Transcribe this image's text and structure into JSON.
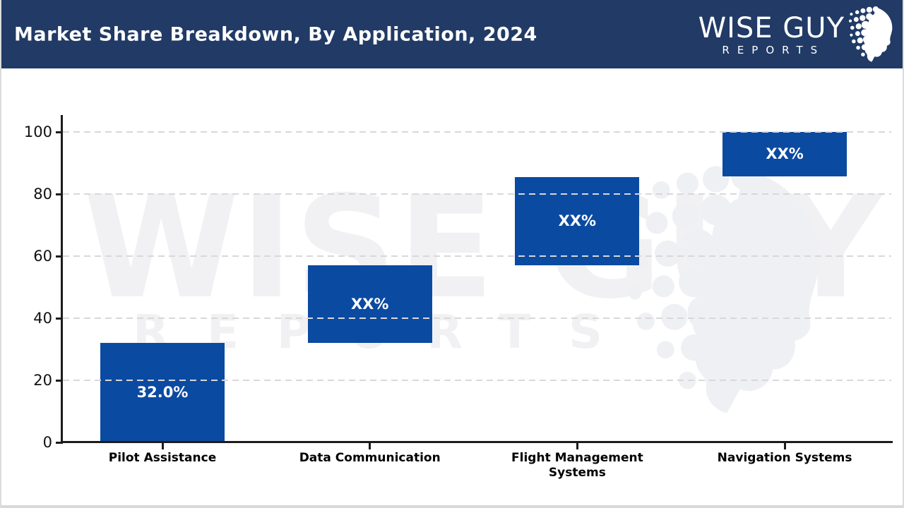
{
  "header": {
    "title": "Market Share Breakdown, By Application, 2024",
    "logo": {
      "wordmark": "WISE GUY",
      "tagline": "REPORTS"
    }
  },
  "watermark": {
    "wordmark": "WISE GUY",
    "tagline": "REPORTS"
  },
  "colors": {
    "header_bg": "#213a66",
    "bar": "#0b4aa1",
    "bar_label": "#ffffff",
    "grid": "#d8d8d8",
    "axis": "#1c1c1c",
    "watermark": "#f1f1f4"
  },
  "chart_data": {
    "type": "bar",
    "variant": "floating-segments-waterfall",
    "title": "Market Share Breakdown, By Application, 2024",
    "categories": [
      "Pilot Assistance",
      "Data Communication",
      "Flight Management Systems",
      "Navigation Systems"
    ],
    "series": [
      {
        "name": "Market share",
        "segments": [
          {
            "from": 0,
            "to": 32,
            "label": "32.0%"
          },
          {
            "from": 32,
            "to": 57,
            "label": "XX%"
          },
          {
            "from": 57,
            "to": 85.5,
            "label": "XX%"
          },
          {
            "from": 85.7,
            "to": 100,
            "label": "XX%"
          }
        ]
      }
    ],
    "xlabel": "",
    "ylabel": "",
    "yticks": [
      0,
      20,
      40,
      60,
      80,
      100
    ],
    "ylim": [
      0,
      105.5
    ],
    "grid": "horizontal-dashed-over-bars",
    "legend": "none"
  }
}
